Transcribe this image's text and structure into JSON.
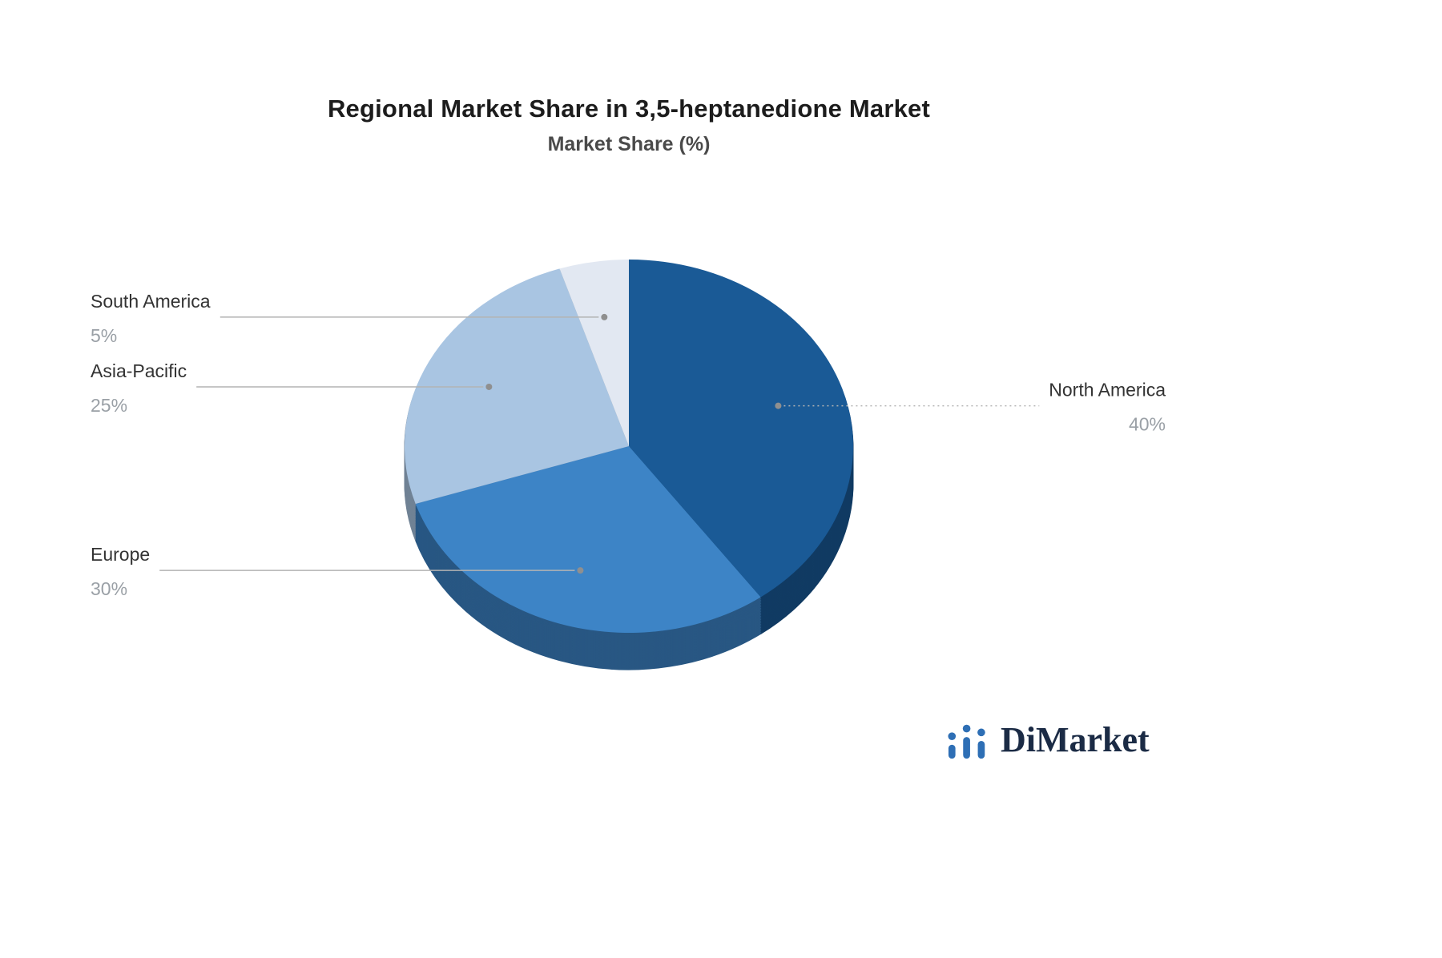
{
  "chart_data": {
    "type": "pie",
    "title": "Regional Market Share in 3,5-heptanedione Market",
    "subtitle": "Market Share (%)",
    "unit": "%",
    "direction": "clockwise",
    "start_angle_deg": 0,
    "effect_3d": true,
    "legend_position": "none",
    "labels_format": "{value}%",
    "slices": [
      {
        "label": "North America",
        "value": 40,
        "color": "#1a5a96",
        "label_side": "right"
      },
      {
        "label": "Europe",
        "value": 30,
        "color": "#3d84c6",
        "label_side": "left"
      },
      {
        "label": "Asia-Pacific",
        "value": 25,
        "color": "#a9c5e2",
        "label_side": "left"
      },
      {
        "label": "South America",
        "value": 5,
        "color": "#e2e8f2",
        "label_side": "left"
      }
    ]
  },
  "branding": {
    "logo_text": "DiMarket",
    "logo_text_color": "#1b2b45",
    "logo_icon": "bar-chart-logo-icon",
    "logo_icon_color": "#2e6fb5"
  },
  "style": {
    "background": "#ffffff",
    "label_color": "#333333",
    "value_color": "#9aa0a6",
    "leader_line_color": "#b3b3b3",
    "leader_dot_color": "#8f8f8f"
  }
}
